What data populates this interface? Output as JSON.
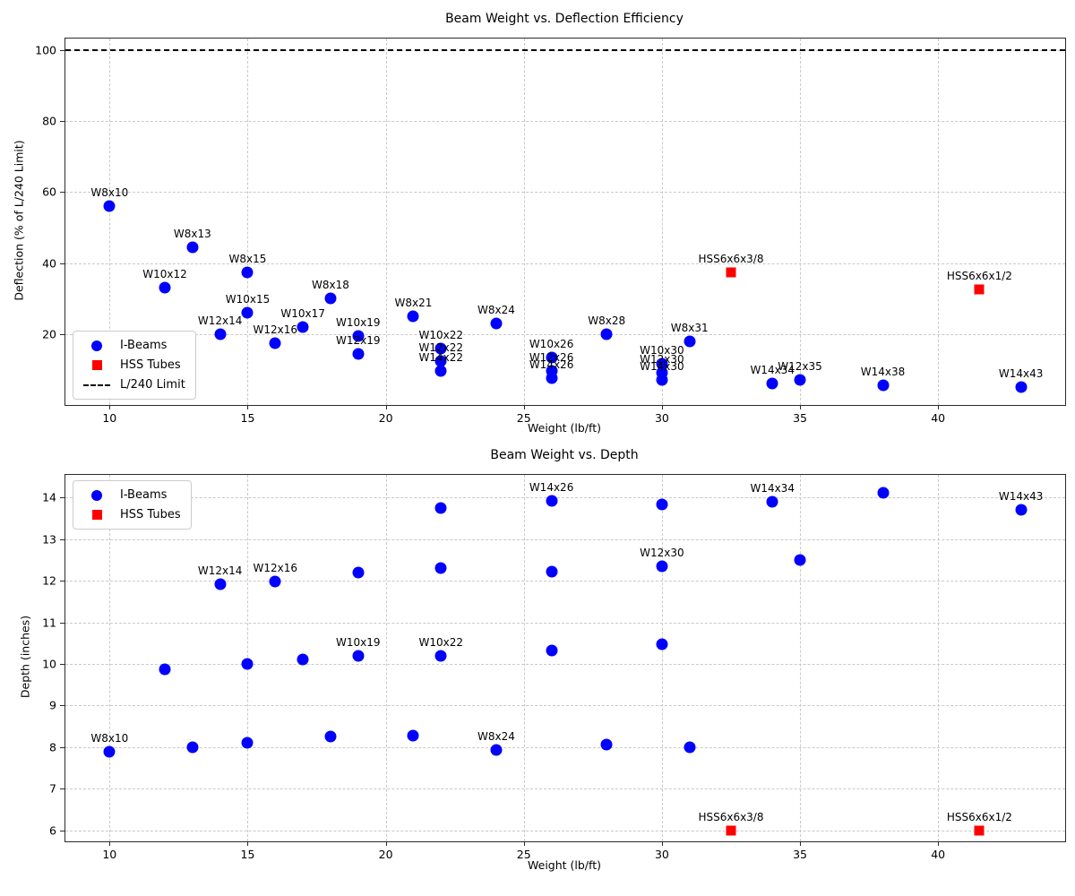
{
  "figure": {
    "background": "#ffffff",
    "grid_color": "#c9c9c9",
    "ibeam_color": "#0000ff",
    "hss_color": "#ff0000",
    "limit_color": "#000000"
  },
  "chart_data": {
    "type": "scatter",
    "series": [
      {
        "name": "I-Beams",
        "marker": "circle",
        "color": "#0000ff",
        "points": [
          {
            "name": "W8x10",
            "weight": 10,
            "deflection_pct": 56,
            "depth_in": 7.89,
            "label_bottom": true
          },
          {
            "name": "W10x12",
            "weight": 12,
            "deflection_pct": 33,
            "depth_in": 9.87,
            "label_bottom": false
          },
          {
            "name": "W8x13",
            "weight": 13,
            "deflection_pct": 44.5,
            "depth_in": 7.99,
            "label_bottom": false
          },
          {
            "name": "W12x14",
            "weight": 14,
            "deflection_pct": 20,
            "depth_in": 11.91,
            "label_bottom": true
          },
          {
            "name": "W8x15",
            "weight": 15,
            "deflection_pct": 37.5,
            "depth_in": 8.11,
            "label_bottom": false
          },
          {
            "name": "W10x15",
            "weight": 15,
            "deflection_pct": 26,
            "depth_in": 10.0,
            "label_bottom": false
          },
          {
            "name": "W12x16",
            "weight": 16,
            "deflection_pct": 17.5,
            "depth_in": 11.99,
            "label_bottom": true
          },
          {
            "name": "W10x17",
            "weight": 17,
            "deflection_pct": 22,
            "depth_in": 10.11,
            "label_bottom": false
          },
          {
            "name": "W8x18",
            "weight": 18,
            "deflection_pct": 30,
            "depth_in": 8.25,
            "label_bottom": false
          },
          {
            "name": "W10x19",
            "weight": 19,
            "deflection_pct": 19.5,
            "depth_in": 10.2,
            "label_bottom": true
          },
          {
            "name": "W12x19",
            "weight": 19,
            "deflection_pct": 14.5,
            "depth_in": 12.2,
            "label_bottom": false
          },
          {
            "name": "W8x21",
            "weight": 21,
            "deflection_pct": 25,
            "depth_in": 8.28,
            "label_bottom": false
          },
          {
            "name": "W10x22",
            "weight": 22,
            "deflection_pct": 16,
            "depth_in": 10.2,
            "label_bottom": true
          },
          {
            "name": "W12x22",
            "weight": 22,
            "deflection_pct": 12.5,
            "depth_in": 12.31,
            "label_bottom": false
          },
          {
            "name": "W14x22",
            "weight": 22,
            "deflection_pct": 9.5,
            "depth_in": 13.74,
            "label_bottom": false
          },
          {
            "name": "W8x24",
            "weight": 24,
            "deflection_pct": 23,
            "depth_in": 7.93,
            "label_bottom": true
          },
          {
            "name": "W10x26",
            "weight": 26,
            "deflection_pct": 13.5,
            "depth_in": 10.33,
            "label_bottom": false
          },
          {
            "name": "W12x26",
            "weight": 26,
            "deflection_pct": 9.5,
            "depth_in": 12.22,
            "label_bottom": false
          },
          {
            "name": "W14x26",
            "weight": 26,
            "deflection_pct": 7.5,
            "depth_in": 13.91,
            "label_bottom": true
          },
          {
            "name": "W8x28",
            "weight": 28,
            "deflection_pct": 20,
            "depth_in": 8.06,
            "label_bottom": false
          },
          {
            "name": "W10x30",
            "weight": 30,
            "deflection_pct": 11.5,
            "depth_in": 10.47,
            "label_bottom": false
          },
          {
            "name": "W12x30",
            "weight": 30,
            "deflection_pct": 9,
            "depth_in": 12.34,
            "label_bottom": true
          },
          {
            "name": "W14x30",
            "weight": 30,
            "deflection_pct": 7,
            "depth_in": 13.84,
            "label_bottom": false
          },
          {
            "name": "W8x31",
            "weight": 31,
            "deflection_pct": 18,
            "depth_in": 8.0,
            "label_bottom": false
          },
          {
            "name": "W14x34",
            "weight": 34,
            "deflection_pct": 6,
            "depth_in": 13.9,
            "label_bottom": true
          },
          {
            "name": "W12x35",
            "weight": 35,
            "deflection_pct": 7,
            "depth_in": 12.5,
            "label_bottom": false
          },
          {
            "name": "W14x38",
            "weight": 38,
            "deflection_pct": 5.5,
            "depth_in": 14.1,
            "label_bottom": false
          },
          {
            "name": "W14x43",
            "weight": 43,
            "deflection_pct": 5,
            "depth_in": 13.7,
            "label_bottom": true
          }
        ]
      },
      {
        "name": "HSS Tubes",
        "marker": "square",
        "color": "#ff0000",
        "points": [
          {
            "name": "HSS6x6x3/8",
            "weight": 32.5,
            "deflection_pct": 37.5,
            "depth_in": 6.0,
            "label_bottom": true
          },
          {
            "name": "HSS6x6x1/2",
            "weight": 41.5,
            "deflection_pct": 32.5,
            "depth_in": 6.0,
            "label_bottom": true
          }
        ]
      }
    ],
    "charts": [
      {
        "title": "Beam Weight vs. Deflection Efficiency",
        "xlabel": "Weight (lb/ft)",
        "ylabel": "Deflection (% of L/240 Limit)",
        "xlim": [
          8.4,
          44.6
        ],
        "ylim": [
          0,
          103.3
        ],
        "xticks": [
          10,
          15,
          20,
          25,
          30,
          35,
          40
        ],
        "yticks": [
          20,
          40,
          60,
          80,
          100
        ],
        "grid": true,
        "value_field": "deflection_pct",
        "annotate": "all",
        "limit_line": {
          "y": 100,
          "label": "L/240 Limit"
        },
        "legend": {
          "location": "lower-left",
          "entries": [
            {
              "label": "I-Beams",
              "marker": "circle",
              "color": "#0000ff"
            },
            {
              "label": "HSS Tubes",
              "marker": "square",
              "color": "#ff0000"
            },
            {
              "label": "L/240 Limit",
              "marker": "dashed-line",
              "color": "#000000"
            }
          ]
        }
      },
      {
        "title": "Beam Weight vs. Depth",
        "xlabel": "Weight (lb/ft)",
        "ylabel": "Depth (inches)",
        "xlim": [
          8.4,
          44.6
        ],
        "ylim": [
          5.74,
          14.54
        ],
        "xticks": [
          10,
          15,
          20,
          25,
          30,
          35,
          40
        ],
        "yticks": [
          6,
          7,
          8,
          9,
          10,
          11,
          12,
          13,
          14
        ],
        "grid": true,
        "value_field": "depth_in",
        "annotate": "flagged",
        "limit_line": null,
        "legend": {
          "location": "upper-left",
          "entries": [
            {
              "label": "I-Beams",
              "marker": "circle",
              "color": "#0000ff"
            },
            {
              "label": "HSS Tubes",
              "marker": "square",
              "color": "#ff0000"
            }
          ]
        }
      }
    ]
  }
}
